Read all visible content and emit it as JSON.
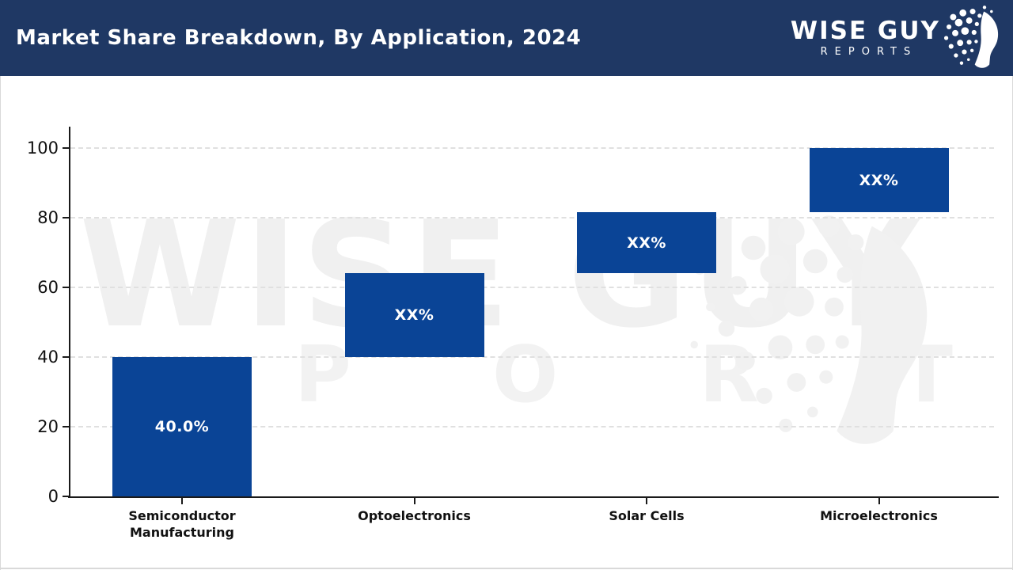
{
  "header": {
    "title": "Market Share Breakdown, By Application, 2024",
    "logo": {
      "line1": "WISE GUY",
      "line2": "REPORTS"
    }
  },
  "watermark": {
    "line1": "WISE GUY",
    "line2": "PORTS"
  },
  "chart_data": {
    "type": "bar",
    "subtype": "floating-segment-waterfall",
    "title": "Market Share Breakdown, By Application, 2024",
    "categories": [
      "Semiconductor Manufacturing",
      "Optoelectronics",
      "Solar Cells",
      "Microelectronics"
    ],
    "segments": [
      {
        "category": "Semiconductor Manufacturing",
        "start": 0,
        "end": 40,
        "value": 40.0,
        "label": "40.0%"
      },
      {
        "category": "Optoelectronics",
        "start": 40,
        "end": 64,
        "value": 24.0,
        "label": "XX%"
      },
      {
        "category": "Solar Cells",
        "start": 64,
        "end": 81.5,
        "value": 17.5,
        "label": "XX%"
      },
      {
        "category": "Microelectronics",
        "start": 81.5,
        "end": 100,
        "value": 18.5,
        "label": "XX%"
      }
    ],
    "xlabel": "",
    "ylabel": "",
    "yticks": [
      0,
      20,
      40,
      60,
      80,
      100
    ],
    "ylim": [
      0,
      106
    ],
    "grid": "horizontal-dashed",
    "legend": "none",
    "bar_color": "#0a4496",
    "bar_label_color": "#ffffff"
  },
  "colors": {
    "header_bg": "#1f3864",
    "bar": "#0a4496",
    "grid": "#e0e0e0",
    "axis": "#1a1a1a",
    "watermark": "#f0f0f0",
    "page_border": "#d9d9d9"
  }
}
